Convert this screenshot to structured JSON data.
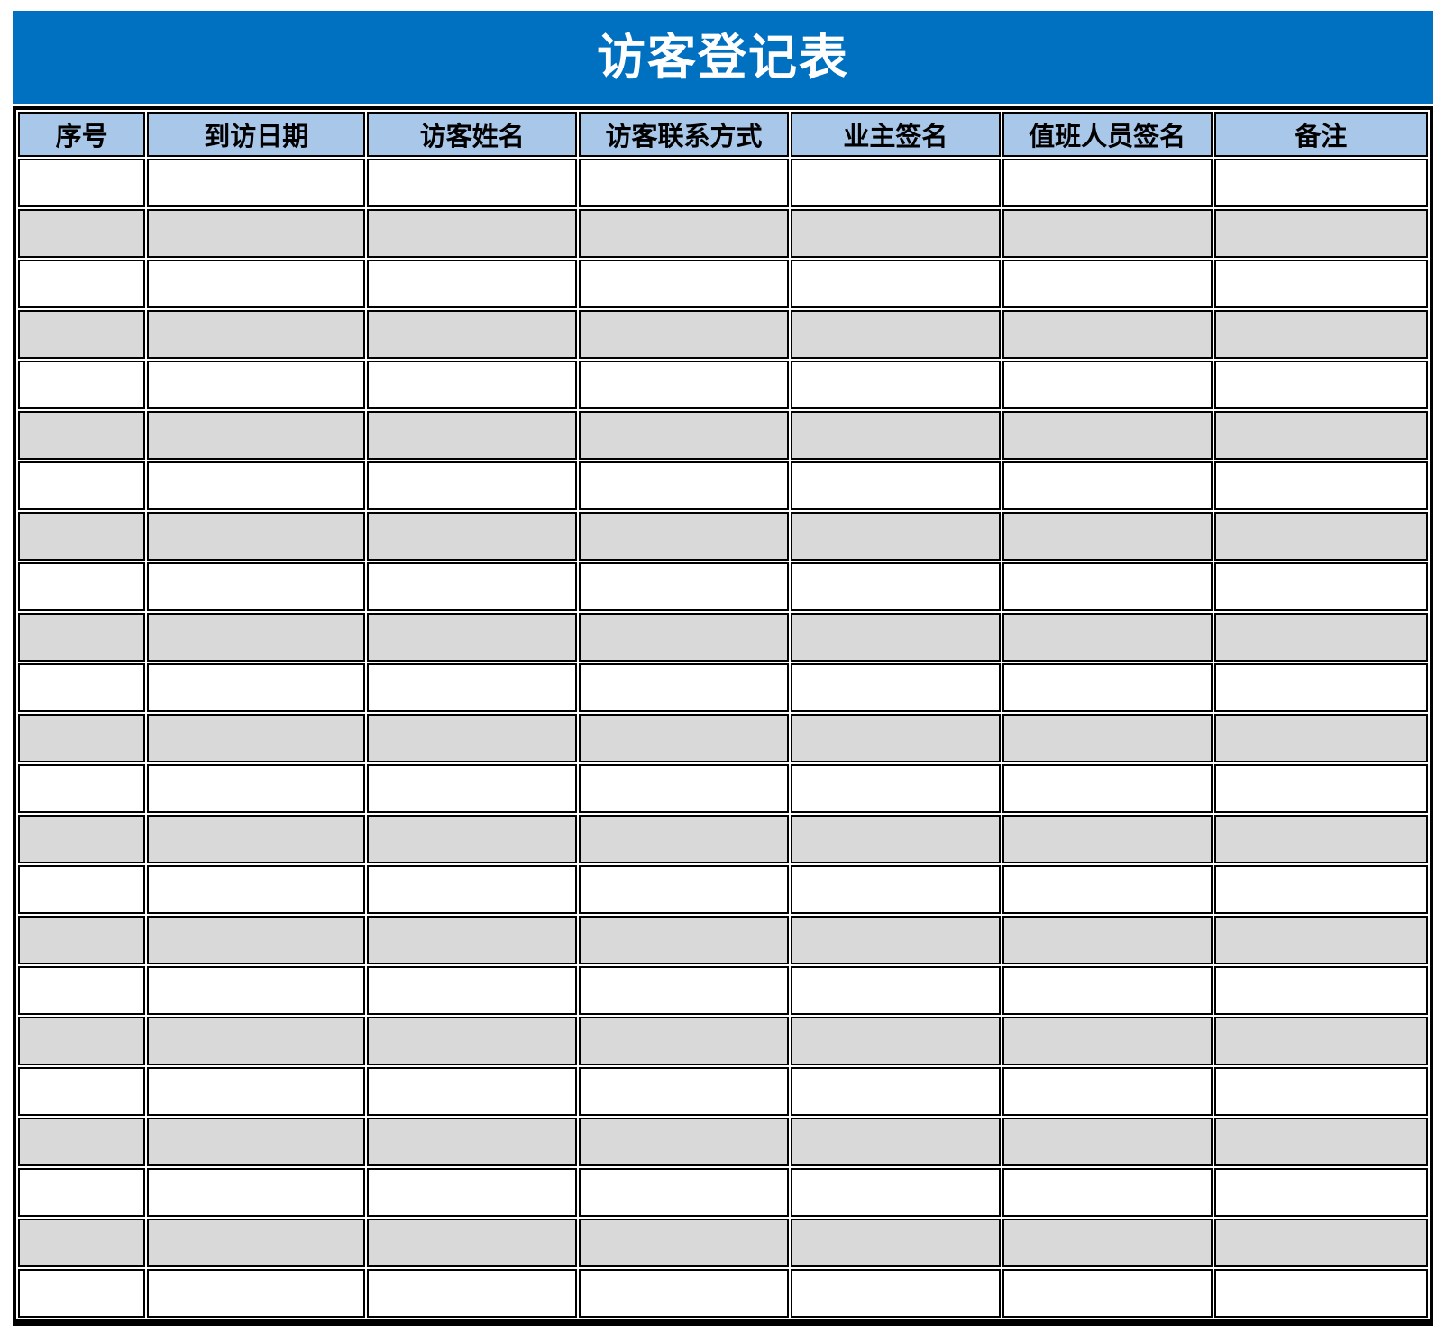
{
  "title": "访客登记表",
  "colors": {
    "banner_bg": "#0070C0",
    "banner_text": "#FFFFFF",
    "header_bg": "#A9C7E8",
    "row_white_bg": "#FFFFFF",
    "row_gray_bg": "#D9D9D9",
    "border": "#000000"
  },
  "table": {
    "columns": [
      {
        "key": "index",
        "label": "序号",
        "width_pct": 9.1
      },
      {
        "key": "visit_date",
        "label": "到访日期",
        "width_pct": 15.6
      },
      {
        "key": "visitor_name",
        "label": "访客姓名",
        "width_pct": 15.0
      },
      {
        "key": "visitor_contact",
        "label": "访客联系方式",
        "width_pct": 15.0
      },
      {
        "key": "owner_signature",
        "label": "业主签名",
        "width_pct": 15.0
      },
      {
        "key": "duty_staff_signature",
        "label": "值班人员签名",
        "width_pct": 15.0
      },
      {
        "key": "remarks",
        "label": "备注",
        "width_pct": 15.3
      }
    ],
    "row_count": 23,
    "rows": [
      [
        "",
        "",
        "",
        "",
        "",
        "",
        ""
      ],
      [
        "",
        "",
        "",
        "",
        "",
        "",
        ""
      ],
      [
        "",
        "",
        "",
        "",
        "",
        "",
        ""
      ],
      [
        "",
        "",
        "",
        "",
        "",
        "",
        ""
      ],
      [
        "",
        "",
        "",
        "",
        "",
        "",
        ""
      ],
      [
        "",
        "",
        "",
        "",
        "",
        "",
        ""
      ],
      [
        "",
        "",
        "",
        "",
        "",
        "",
        ""
      ],
      [
        "",
        "",
        "",
        "",
        "",
        "",
        ""
      ],
      [
        "",
        "",
        "",
        "",
        "",
        "",
        ""
      ],
      [
        "",
        "",
        "",
        "",
        "",
        "",
        ""
      ],
      [
        "",
        "",
        "",
        "",
        "",
        "",
        ""
      ],
      [
        "",
        "",
        "",
        "",
        "",
        "",
        ""
      ],
      [
        "",
        "",
        "",
        "",
        "",
        "",
        ""
      ],
      [
        "",
        "",
        "",
        "",
        "",
        "",
        ""
      ],
      [
        "",
        "",
        "",
        "",
        "",
        "",
        ""
      ],
      [
        "",
        "",
        "",
        "",
        "",
        "",
        ""
      ],
      [
        "",
        "",
        "",
        "",
        "",
        "",
        ""
      ],
      [
        "",
        "",
        "",
        "",
        "",
        "",
        ""
      ],
      [
        "",
        "",
        "",
        "",
        "",
        "",
        ""
      ],
      [
        "",
        "",
        "",
        "",
        "",
        "",
        ""
      ],
      [
        "",
        "",
        "",
        "",
        "",
        "",
        ""
      ],
      [
        "",
        "",
        "",
        "",
        "",
        "",
        ""
      ],
      [
        "",
        "",
        "",
        "",
        "",
        "",
        ""
      ]
    ]
  }
}
